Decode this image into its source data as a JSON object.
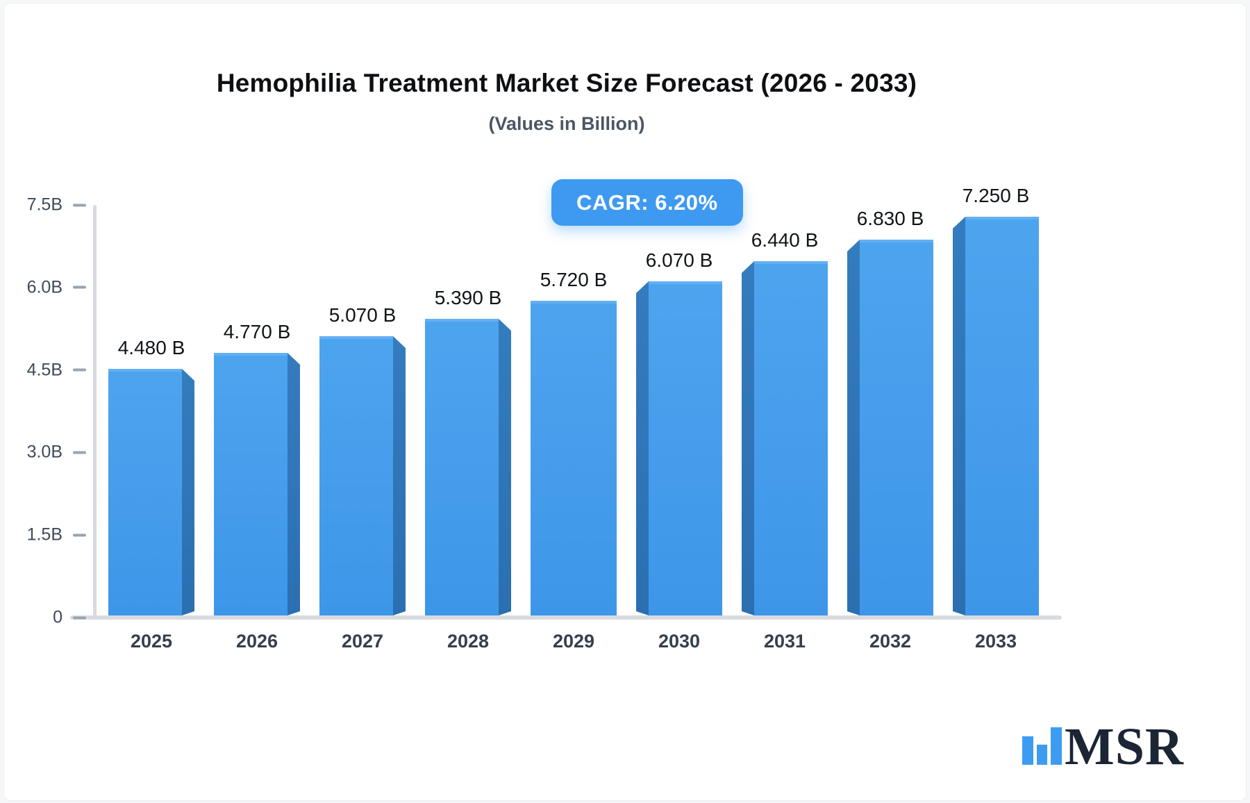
{
  "header": {
    "title": "Hemophilia Treatment Market Size Forecast (2026 - 2033)",
    "subtitle": "(Values in Billion)"
  },
  "badge": {
    "label": "CAGR: 6.20%",
    "color": "#3e9af0"
  },
  "chart_data": {
    "type": "bar",
    "title": "Hemophilia Treatment Market Size Forecast (2026 - 2033)",
    "subtitle": "(Values in Billion)",
    "annotation": "CAGR: 6.20%",
    "categories": [
      "2025",
      "2026",
      "2027",
      "2028",
      "2029",
      "2030",
      "2031",
      "2032",
      "2033"
    ],
    "values": [
      4.48,
      4.77,
      5.07,
      5.39,
      5.72,
      6.07,
      6.44,
      6.83,
      7.25
    ],
    "bar_labels": [
      "4.480 B",
      "4.770 B",
      "5.070 B",
      "5.390 B",
      "5.720 B",
      "6.070 B",
      "6.440 B",
      "6.830 B",
      "7.250 B"
    ],
    "y_ticks": [
      {
        "label": "7.5B",
        "value": 7.5
      },
      {
        "label": "6.0B",
        "value": 6.0
      },
      {
        "label": "4.5B",
        "value": 4.5
      },
      {
        "label": "3.0B",
        "value": 3.0
      },
      {
        "label": "1.5B",
        "value": 1.5
      },
      {
        "label": "0",
        "value": 0.0
      }
    ],
    "ylim": [
      0,
      7.5
    ],
    "xlabel": "",
    "ylabel": "",
    "grid": false,
    "legend": "none",
    "bar_color": "#419cec",
    "bar_side_color": "#2e74b6",
    "effect": "3d-perspective-center-vanishing"
  },
  "logo": {
    "text": "MSR",
    "icon": "bar-chart-icon",
    "bar_color": "#3d9cf1",
    "text_color": "#1b2534"
  }
}
